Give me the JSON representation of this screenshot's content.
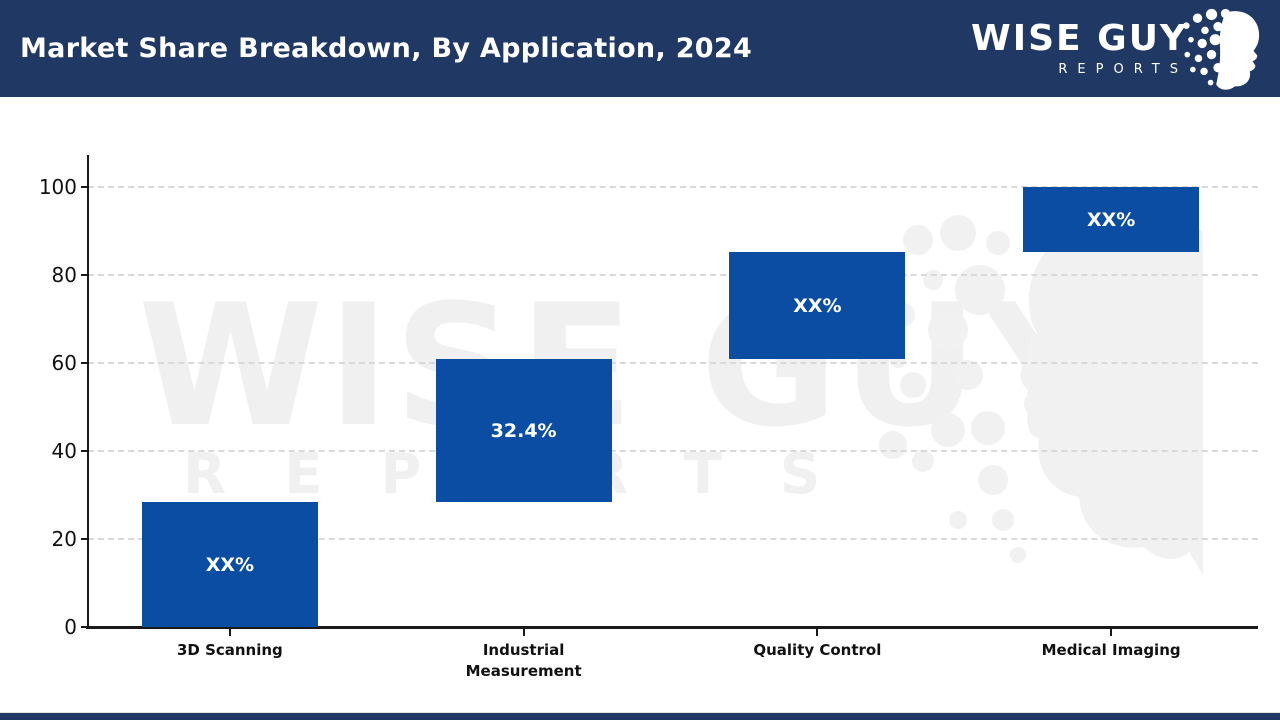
{
  "header": {
    "title": "Market Share Breakdown, By Application, 2024",
    "bg_color": "#203864",
    "logo": {
      "line1": "WISE GUY",
      "line2": "REPORTS"
    }
  },
  "watermark": {
    "line1": "WISE GUY",
    "line2": "REPORTS"
  },
  "chart_data": {
    "type": "bar",
    "subtype": "floating-waterfall",
    "title": "Market Share Breakdown, By Application, 2024",
    "xlabel": "",
    "ylabel": "",
    "ylim": [
      0,
      100
    ],
    "yticks": [
      0,
      20,
      40,
      60,
      80,
      100
    ],
    "grid": "horizontal-dashed",
    "legend": "none",
    "bar_color": "#0b4da2",
    "categories": [
      "3D Scanning",
      "Industrial Measurement",
      "Quality Control",
      "Medical Imaging"
    ],
    "series": [
      {
        "name": "Market Share (%)",
        "starts": [
          0,
          28.4,
          60.8,
          85.2
        ],
        "values": [
          28.4,
          32.4,
          24.4,
          14.8
        ],
        "labels": [
          "XX%",
          "32.4%",
          "XX%",
          "XX%"
        ]
      }
    ]
  }
}
